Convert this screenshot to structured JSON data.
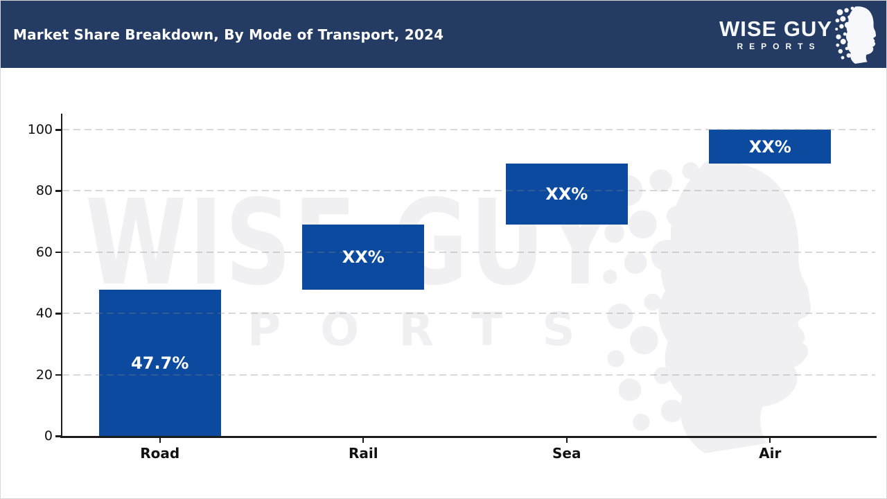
{
  "header": {
    "title": "Market Share Breakdown, By Mode of Transport, 2024",
    "logo": {
      "line1": "WISE GUY",
      "line2": "REPORTS"
    }
  },
  "watermark": {
    "line1": "WISE GUY",
    "line2": "REPORTS"
  },
  "chart_data": {
    "type": "bar",
    "subtype": "floating-waterfall",
    "title": "Market Share Breakdown, By Mode of Transport, 2024",
    "categories": [
      "Road",
      "Rail",
      "Sea",
      "Air"
    ],
    "segments": [
      {
        "category": "Road",
        "start": 0,
        "end": 47.7,
        "label": "47.7%"
      },
      {
        "category": "Rail",
        "start": 47.7,
        "end": 69.1,
        "label": "XX%"
      },
      {
        "category": "Sea",
        "start": 69.1,
        "end": 88.9,
        "label": "XX%"
      },
      {
        "category": "Air",
        "start": 88.9,
        "end": 100,
        "label": "XX%"
      }
    ],
    "xlabel": "",
    "ylabel": "",
    "ylim": [
      0,
      100
    ],
    "yticks": [
      0,
      20,
      40,
      60,
      80,
      100
    ],
    "grid": "horizontal-dashed-over-bars",
    "legend": "none"
  },
  "colors": {
    "header_bg": "#243B64",
    "bar": "#0B4A9F",
    "bar_label": "#FFFFFF",
    "axis": "#1C1C1C",
    "watermark": "#F0F0F3"
  }
}
